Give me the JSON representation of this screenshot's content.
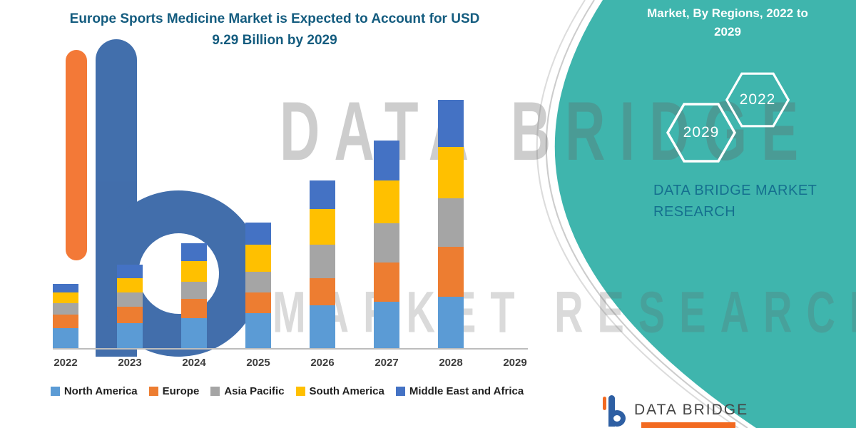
{
  "header": {
    "title_line1": "Europe Sports Medicine Market is Expected to Account for USD",
    "title_line2": "9.29 Billion by 2029",
    "title_color": "#145c7f"
  },
  "right_panel": {
    "background": "#3fb5ad",
    "title_line1": "Market, By Regions, 2022 to",
    "title_line2": "2029",
    "hexagons": [
      {
        "label": "2029"
      },
      {
        "label": "2022"
      }
    ],
    "brand_line1": "DATA BRIDGE MARKET",
    "brand_line2": "RESEARCH",
    "brand_color": "#15708f"
  },
  "watermark": {
    "line1": "DATA BRIDGE",
    "line2": "MARKET RESEARCH"
  },
  "footer": {
    "brand": "DATA BRIDGE",
    "accent_color": "#f26a21"
  },
  "chart_data": {
    "type": "bar",
    "stacked": true,
    "title": "Europe Sports Medicine Market is Expected to Account for USD 9.29 Billion by 2029",
    "categories": [
      "2022",
      "2023",
      "2024",
      "2025",
      "2026",
      "2027",
      "2028",
      "2029"
    ],
    "series": [
      {
        "name": "North America",
        "color": "#5b9bd5",
        "values": [
          2.8,
          3.5,
          4.2,
          4.9,
          6.0,
          6.5,
          7.2,
          null
        ]
      },
      {
        "name": "Europe",
        "color": "#ed7d31",
        "values": [
          1.9,
          2.3,
          2.7,
          2.9,
          3.8,
          5.5,
          7.0,
          null
        ]
      },
      {
        "name": "Asia Pacific",
        "color": "#a5a5a5",
        "values": [
          1.6,
          2.0,
          2.4,
          2.9,
          4.7,
          5.5,
          6.8,
          null
        ]
      },
      {
        "name": "South America",
        "color": "#ffc000",
        "values": [
          1.5,
          2.0,
          2.9,
          3.8,
          5.0,
          6.0,
          7.2,
          null
        ]
      },
      {
        "name": "Middle East and Africa",
        "color": "#4472c4",
        "values": [
          1.2,
          1.9,
          2.5,
          3.1,
          4.0,
          5.6,
          6.6,
          null
        ]
      }
    ],
    "xlabel": "",
    "ylabel": "",
    "ylim": [
      0,
      40
    ],
    "grid": false,
    "legend_position": "bottom"
  }
}
